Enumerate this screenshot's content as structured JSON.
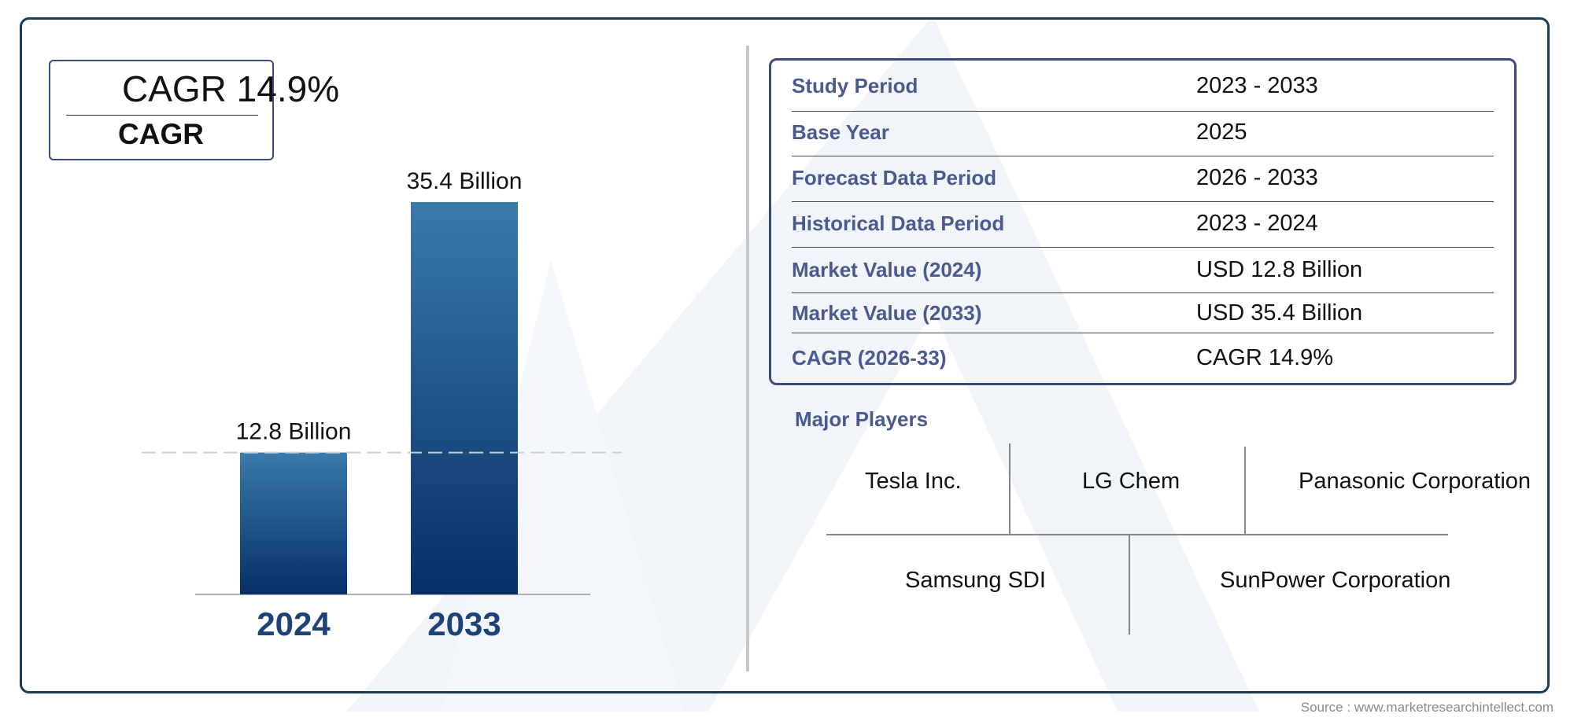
{
  "colors": {
    "frame": "#1b3a57",
    "bar_top": "#3a7aab",
    "bar_bottom": "#062f66",
    "key_text": "#4a5a8e",
    "year_label": "#1d4279"
  },
  "cagr_badge": {
    "value": "CAGR 14.9%",
    "label": "CAGR"
  },
  "chart_data": {
    "type": "bar",
    "categories": [
      "2024",
      "2033"
    ],
    "values": [
      12.8,
      35.4
    ],
    "data_labels": [
      "12.8 Billion",
      "35.4 Billion"
    ],
    "title": "",
    "xlabel": "",
    "ylabel": ""
  },
  "info_table": [
    {
      "key": "Study Period",
      "value": "2023 - 2033"
    },
    {
      "key": "Base Year",
      "value": "2025"
    },
    {
      "key": "Forecast Data Period",
      "value": "2026 - 2033"
    },
    {
      "key": "Historical Data Period",
      "value": "2023 - 2024"
    },
    {
      "key": "Market Value (2024)",
      "value": "USD 12.8 Billion"
    },
    {
      "key": "Market Value (2033)",
      "value": "USD 35.4 Billion"
    },
    {
      "key": "CAGR (2026-33)",
      "value": "CAGR 14.9%"
    }
  ],
  "major_players": {
    "title": "Major Players",
    "names": [
      "Tesla Inc.",
      "LG Chem",
      "Panasonic Corporation",
      "Samsung SDI",
      "SunPower Corporation"
    ]
  },
  "source": "Source : www.marketresearchintellect.com"
}
